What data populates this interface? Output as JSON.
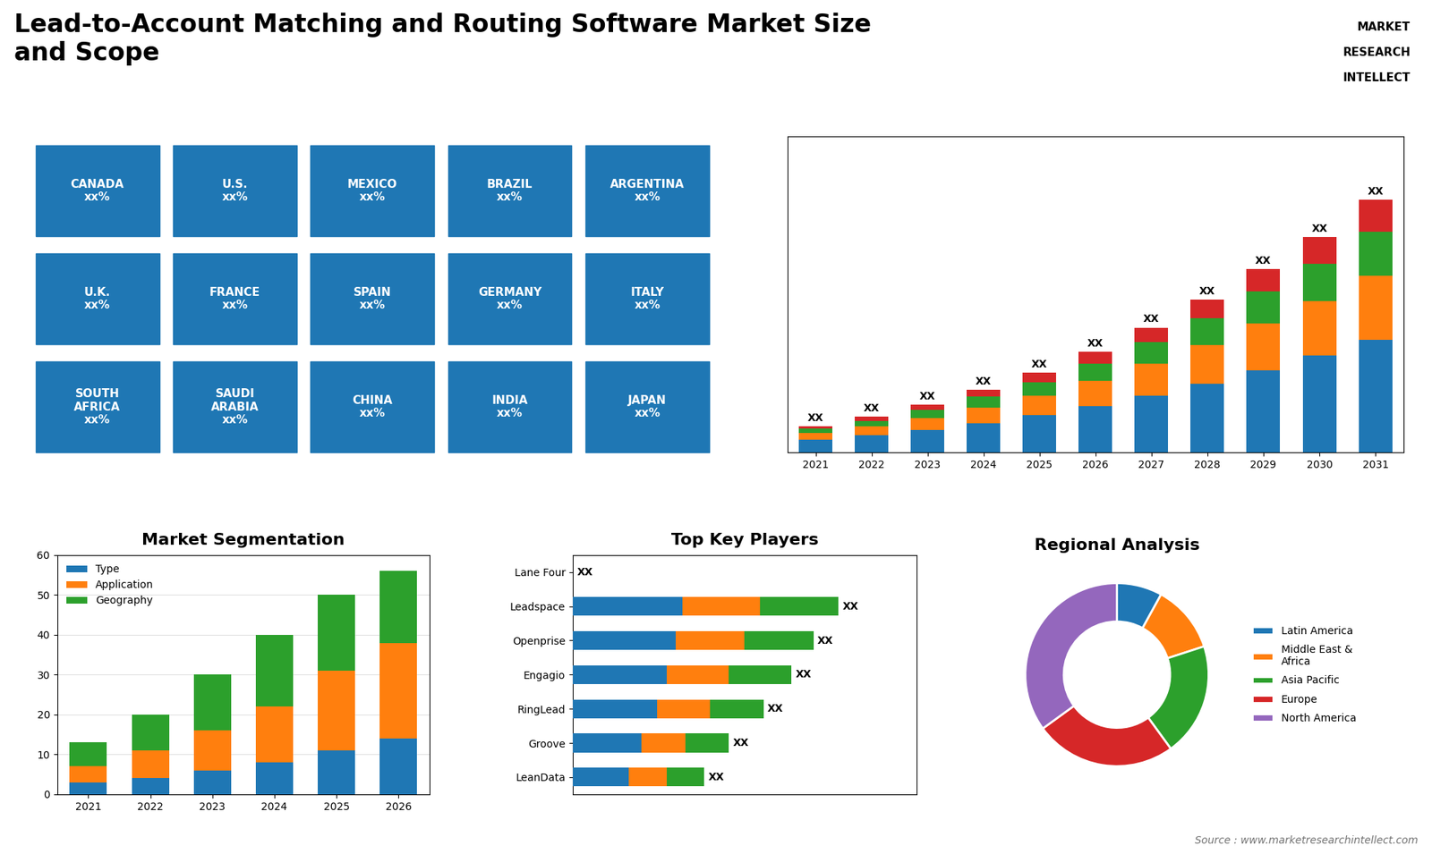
{
  "title": "Lead-to-Account Matching and Routing Software Market Size\nand Scope",
  "annotations": [
    "MARKET",
    "RESEARCH",
    "INTELLECT"
  ],
  "source": "Source : www.marketresearchintellect.com",
  "chart_data": [
    {
      "type": "map",
      "categories": [
        "CANADA\nxx%",
        "U.S.\nxx%",
        "MEXICO\nxx%",
        "BRAZIL\nxx%",
        "ARGENTINA\nxx%",
        "U.K.\nxx%",
        "FRANCE\nxx%",
        "SPAIN\nxx%",
        "GERMANY\nxx%",
        "ITALY\nxx%",
        "SOUTH\nAFRICA\nxx%",
        "SAUDI\nARABIA\nxx%",
        "CHINA\nxx%",
        "INDIA\nxx%",
        "JAPAN\nxx%"
      ]
    },
    {
      "type": "bar",
      "stacked": true,
      "categories": [
        "2021",
        "2022",
        "2023",
        "2024",
        "2025",
        "2026",
        "2027",
        "2028",
        "2029",
        "2030",
        "2031"
      ],
      "series": [
        {
          "values": [
            1.0,
            1.3,
            1.7,
            2.2,
            2.8,
            3.5,
            4.3,
            5.2,
            6.2,
            7.3,
            8.5
          ]
        },
        {
          "values": [
            0.5,
            0.7,
            0.9,
            1.2,
            1.5,
            1.9,
            2.4,
            2.9,
            3.5,
            4.1,
            4.8
          ]
        },
        {
          "values": [
            0.3,
            0.4,
            0.6,
            0.8,
            1.0,
            1.3,
            1.6,
            2.0,
            2.4,
            2.8,
            3.3
          ]
        },
        {
          "values": [
            0.2,
            0.3,
            0.4,
            0.5,
            0.7,
            0.9,
            1.1,
            1.4,
            1.7,
            2.0,
            2.4
          ]
        }
      ],
      "ylim": [
        0,
        23.75
      ],
      "tick_labels": "x",
      "annotations": [
        "XX",
        "XX",
        "XX",
        "XX",
        "XX",
        "XX",
        "XX",
        "XX",
        "XX",
        "XX",
        "XX"
      ]
    },
    {
      "type": "bar",
      "title": "Market Segmentation",
      "stacked": true,
      "categories": [
        "2021",
        "2022",
        "2023",
        "2024",
        "2025",
        "2026"
      ],
      "series": [
        {
          "name": "Type",
          "values": [
            3,
            4,
            6,
            8,
            11,
            14
          ]
        },
        {
          "name": "Application",
          "values": [
            4,
            7,
            10,
            14,
            20,
            24
          ]
        },
        {
          "name": "Geography",
          "values": [
            6,
            9,
            14,
            18,
            19,
            18
          ]
        }
      ],
      "ylim": [
        0,
        60
      ],
      "yticks": [
        0,
        10,
        20,
        30,
        40,
        50,
        60
      ],
      "grid": true,
      "legend": "upper left"
    },
    {
      "type": "bar",
      "title": "Top Key Players",
      "orientation": "horizontal",
      "stacked": true,
      "categories": [
        "Lane Four",
        "Leadspace",
        "Openprise",
        "Engagio",
        "RingLead",
        "Groove",
        "LeanData"
      ],
      "series": [
        {
          "values": [
            0.0,
            0.35,
            0.33,
            0.3,
            0.27,
            0.22,
            0.18
          ]
        },
        {
          "values": [
            0.0,
            0.25,
            0.22,
            0.2,
            0.17,
            0.14,
            0.12
          ]
        },
        {
          "values": [
            0.0,
            0.25,
            0.22,
            0.2,
            0.17,
            0.14,
            0.12
          ]
        }
      ],
      "xlim": [
        0,
        1.1
      ],
      "tick_labels": "y",
      "annotations": [
        "XX",
        "XX",
        "XX",
        "XX",
        "XX",
        "XX",
        "XX"
      ]
    },
    {
      "type": "donut",
      "title": "Regional Analysis",
      "categories": [
        "Latin America",
        "Middle East &\nAfrica",
        "Asia Pacific",
        "Europe",
        "North America"
      ],
      "values": [
        8,
        12,
        20,
        25,
        35
      ],
      "legend": "center left"
    }
  ]
}
